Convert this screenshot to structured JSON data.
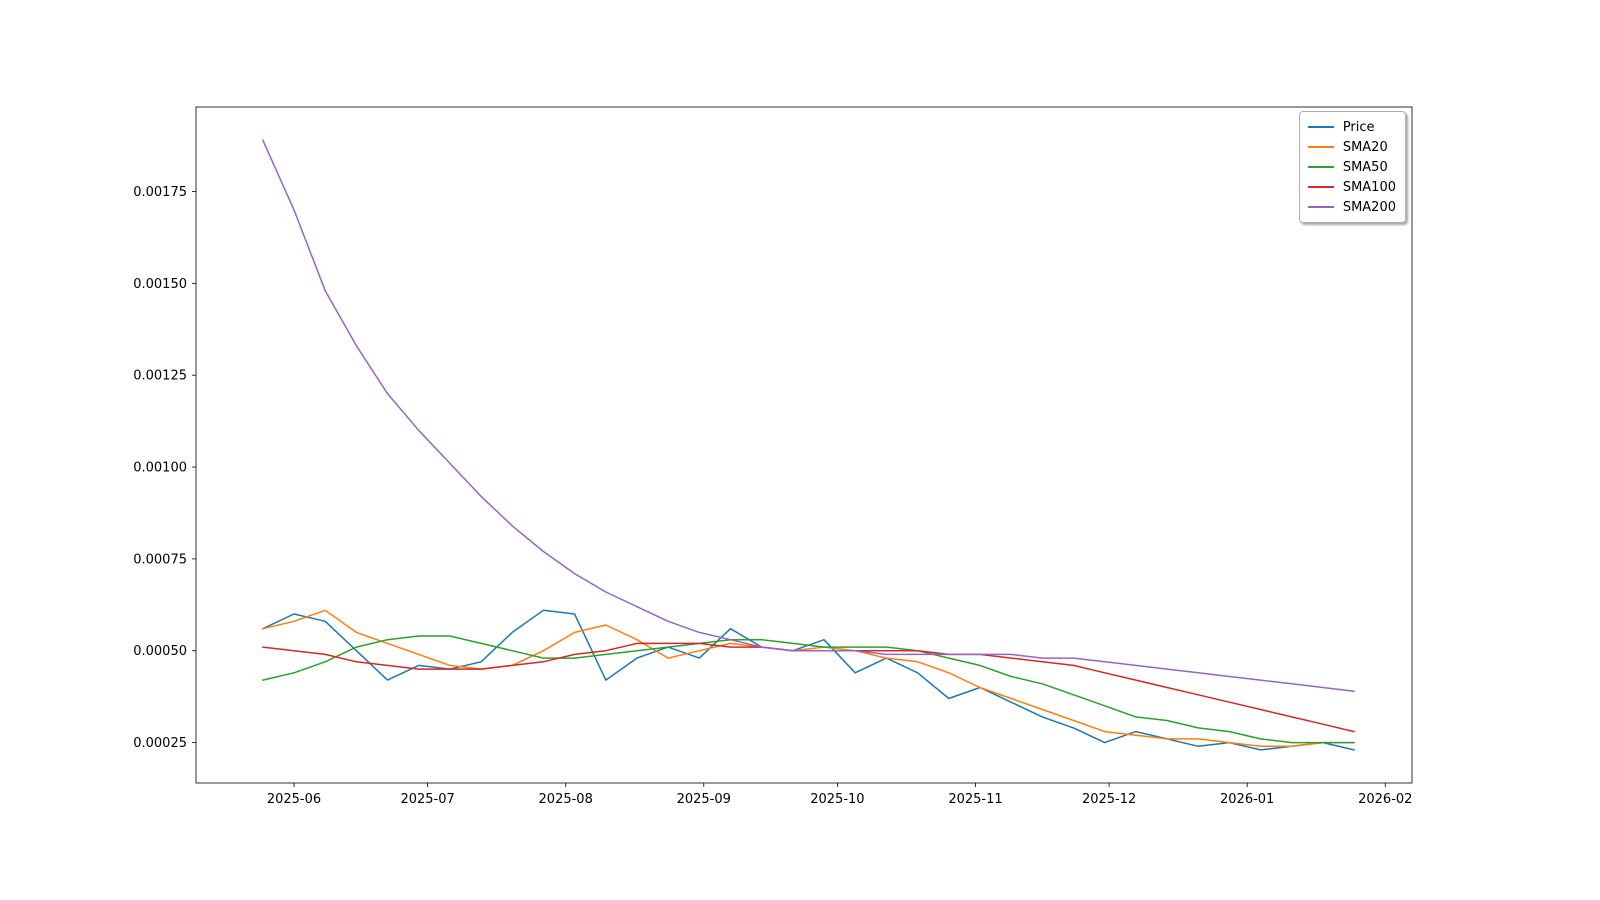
{
  "figure": {
    "background": "#ffffff"
  },
  "chart_data": {
    "type": "line",
    "title": "",
    "xlabel": "",
    "ylabel": "",
    "grid": false,
    "legend": {
      "position": "upper right",
      "entries": [
        "Price",
        "SMA20",
        "SMA50",
        "SMA100",
        "SMA200"
      ]
    },
    "xlim": [
      "2025-05-10",
      "2026-02-07"
    ],
    "ylim": [
      0.00014,
      0.00198
    ],
    "xticks": {
      "values": [
        "2025-06-01",
        "2025-07-01",
        "2025-08-01",
        "2025-09-01",
        "2025-10-01",
        "2025-11-01",
        "2025-12-01",
        "2026-01-01",
        "2026-02-01"
      ],
      "labels": [
        "2025-06",
        "2025-07",
        "2025-08",
        "2025-09",
        "2025-10",
        "2025-11",
        "2025-12",
        "2026-01",
        "2026-02"
      ]
    },
    "yticks": {
      "values": [
        0.00025,
        0.0005,
        0.00075,
        0.001,
        0.00125,
        0.0015,
        0.00175
      ],
      "labels": [
        "0.00025",
        "0.00050",
        "0.00075",
        "0.00100",
        "0.00125",
        "0.00150",
        "0.00175"
      ]
    },
    "x": [
      "2025-05-25",
      "2025-06-01",
      "2025-06-08",
      "2025-06-15",
      "2025-06-22",
      "2025-06-29",
      "2025-07-06",
      "2025-07-13",
      "2025-07-20",
      "2025-07-27",
      "2025-08-03",
      "2025-08-10",
      "2025-08-17",
      "2025-08-24",
      "2025-08-31",
      "2025-09-07",
      "2025-09-14",
      "2025-09-21",
      "2025-09-28",
      "2025-10-05",
      "2025-10-12",
      "2025-10-19",
      "2025-10-26",
      "2025-11-02",
      "2025-11-09",
      "2025-11-16",
      "2025-11-23",
      "2025-11-30",
      "2025-12-07",
      "2025-12-14",
      "2025-12-21",
      "2025-12-28",
      "2026-01-04",
      "2026-01-11",
      "2026-01-18",
      "2026-01-25"
    ],
    "series": [
      {
        "name": "Price",
        "color": "#1f77b4",
        "values": [
          0.00056,
          0.0006,
          0.00058,
          0.0005,
          0.00042,
          0.00046,
          0.00045,
          0.00047,
          0.00055,
          0.00061,
          0.0006,
          0.00042,
          0.00048,
          0.00051,
          0.00048,
          0.00056,
          0.00051,
          0.0005,
          0.00053,
          0.00044,
          0.00048,
          0.00044,
          0.00037,
          0.0004,
          0.00036,
          0.00032,
          0.00029,
          0.00025,
          0.00028,
          0.00026,
          0.00024,
          0.00025,
          0.00023,
          0.00024,
          0.00025,
          0.00023
        ]
      },
      {
        "name": "SMA20",
        "color": "#ff7f0e",
        "values": [
          0.00056,
          0.00058,
          0.00061,
          0.00055,
          0.00052,
          0.00049,
          0.00046,
          0.00045,
          0.00046,
          0.0005,
          0.00055,
          0.00057,
          0.00053,
          0.00048,
          0.0005,
          0.00052,
          0.00051,
          0.0005,
          0.00051,
          0.0005,
          0.00048,
          0.00047,
          0.00044,
          0.0004,
          0.00037,
          0.00034,
          0.00031,
          0.00028,
          0.00027,
          0.00026,
          0.00026,
          0.00025,
          0.00024,
          0.00024,
          0.00025,
          0.00025
        ]
      },
      {
        "name": "SMA50",
        "color": "#2ca02c",
        "values": [
          0.00042,
          0.00044,
          0.00047,
          0.00051,
          0.00053,
          0.00054,
          0.00054,
          0.00052,
          0.0005,
          0.00048,
          0.00048,
          0.00049,
          0.0005,
          0.00051,
          0.00052,
          0.00053,
          0.00053,
          0.00052,
          0.00051,
          0.00051,
          0.00051,
          0.0005,
          0.00048,
          0.00046,
          0.00043,
          0.00041,
          0.00038,
          0.00035,
          0.00032,
          0.00031,
          0.00029,
          0.00028,
          0.00026,
          0.00025,
          0.00025,
          0.00025
        ]
      },
      {
        "name": "SMA100",
        "color": "#d62728",
        "values": [
          0.00051,
          0.0005,
          0.00049,
          0.00047,
          0.00046,
          0.00045,
          0.00045,
          0.00045,
          0.00046,
          0.00047,
          0.00049,
          0.0005,
          0.00052,
          0.00052,
          0.00052,
          0.00051,
          0.00051,
          0.0005,
          0.0005,
          0.0005,
          0.0005,
          0.0005,
          0.00049,
          0.00049,
          0.00048,
          0.00047,
          0.00046,
          0.00044,
          0.00042,
          0.0004,
          0.00038,
          0.00036,
          0.00034,
          0.00032,
          0.0003,
          0.00028
        ]
      },
      {
        "name": "SMA200",
        "color": "#9467bd",
        "values": [
          0.00189,
          0.0017,
          0.00148,
          0.00133,
          0.0012,
          0.0011,
          0.00101,
          0.00092,
          0.00084,
          0.00077,
          0.00071,
          0.00066,
          0.00062,
          0.00058,
          0.00055,
          0.00053,
          0.00051,
          0.0005,
          0.0005,
          0.0005,
          0.00049,
          0.00049,
          0.00049,
          0.00049,
          0.00049,
          0.00048,
          0.00048,
          0.00047,
          0.00046,
          0.00045,
          0.00044,
          0.00043,
          0.00042,
          0.00041,
          0.0004,
          0.00039
        ]
      }
    ]
  }
}
